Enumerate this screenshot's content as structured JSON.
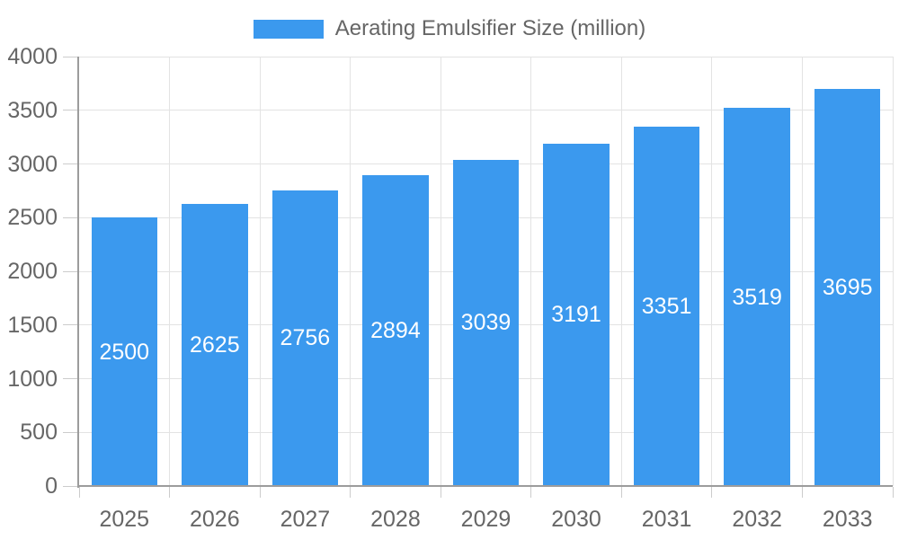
{
  "chart_data": {
    "type": "bar",
    "title": "Aerating Emulsifier Size (million)",
    "legend": [
      "Aerating Emulsifier Size (million)"
    ],
    "legend_position": "top",
    "categories": [
      "2025",
      "2026",
      "2027",
      "2028",
      "2029",
      "2030",
      "2031",
      "2032",
      "2033"
    ],
    "values": [
      2500,
      2625,
      2756,
      2894,
      3039,
      3191,
      3351,
      3519,
      3695
    ],
    "xlabel": "",
    "ylabel": "",
    "ylim": [
      0,
      4000
    ],
    "yticks": [
      0,
      500,
      1000,
      1500,
      2000,
      2500,
      3000,
      3500,
      4000
    ],
    "grid": true,
    "bar_color": "#3B99EE",
    "value_label_color": "#FFFFFF",
    "axis_text_color": "#666666",
    "grid_color": "#E3E3E3",
    "tick_color": "#CCCCCC",
    "axis_line_color": "#9C9C9C",
    "background_color": "#FFFFFF"
  }
}
